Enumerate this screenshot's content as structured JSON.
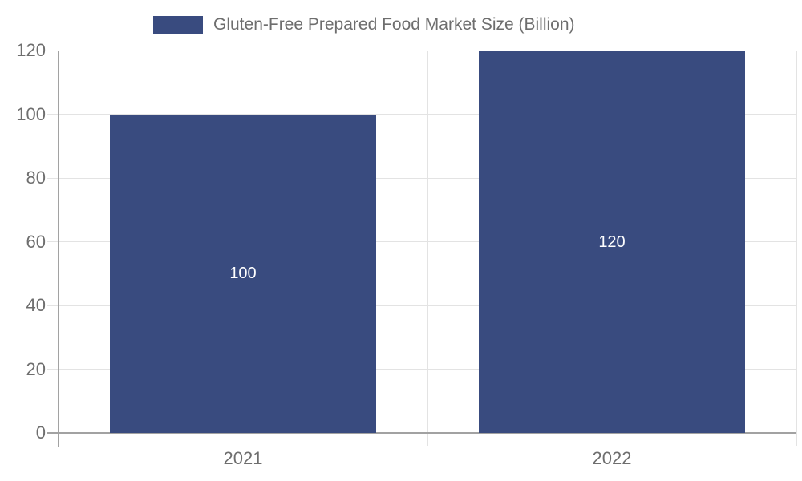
{
  "chart_data": {
    "type": "bar",
    "title": "",
    "legend": "Gluten-Free Prepared Food Market Size (Billion)",
    "categories": [
      "2021",
      "2022"
    ],
    "values": [
      100,
      120
    ],
    "xlabel": "",
    "ylabel": "",
    "ylim": [
      0,
      120
    ],
    "yticks": [
      0,
      20,
      40,
      60,
      80,
      100,
      120
    ],
    "grid": true,
    "legend_position": "top-center",
    "bar_label_position": "inside-middle"
  },
  "colors": {
    "bar": "#394B7F",
    "grid": "#e3e3e3",
    "axis": "#a2a2a2",
    "tick_text": "#6e6e6e",
    "bar_label_text": "#ffffff",
    "background": "#ffffff"
  }
}
